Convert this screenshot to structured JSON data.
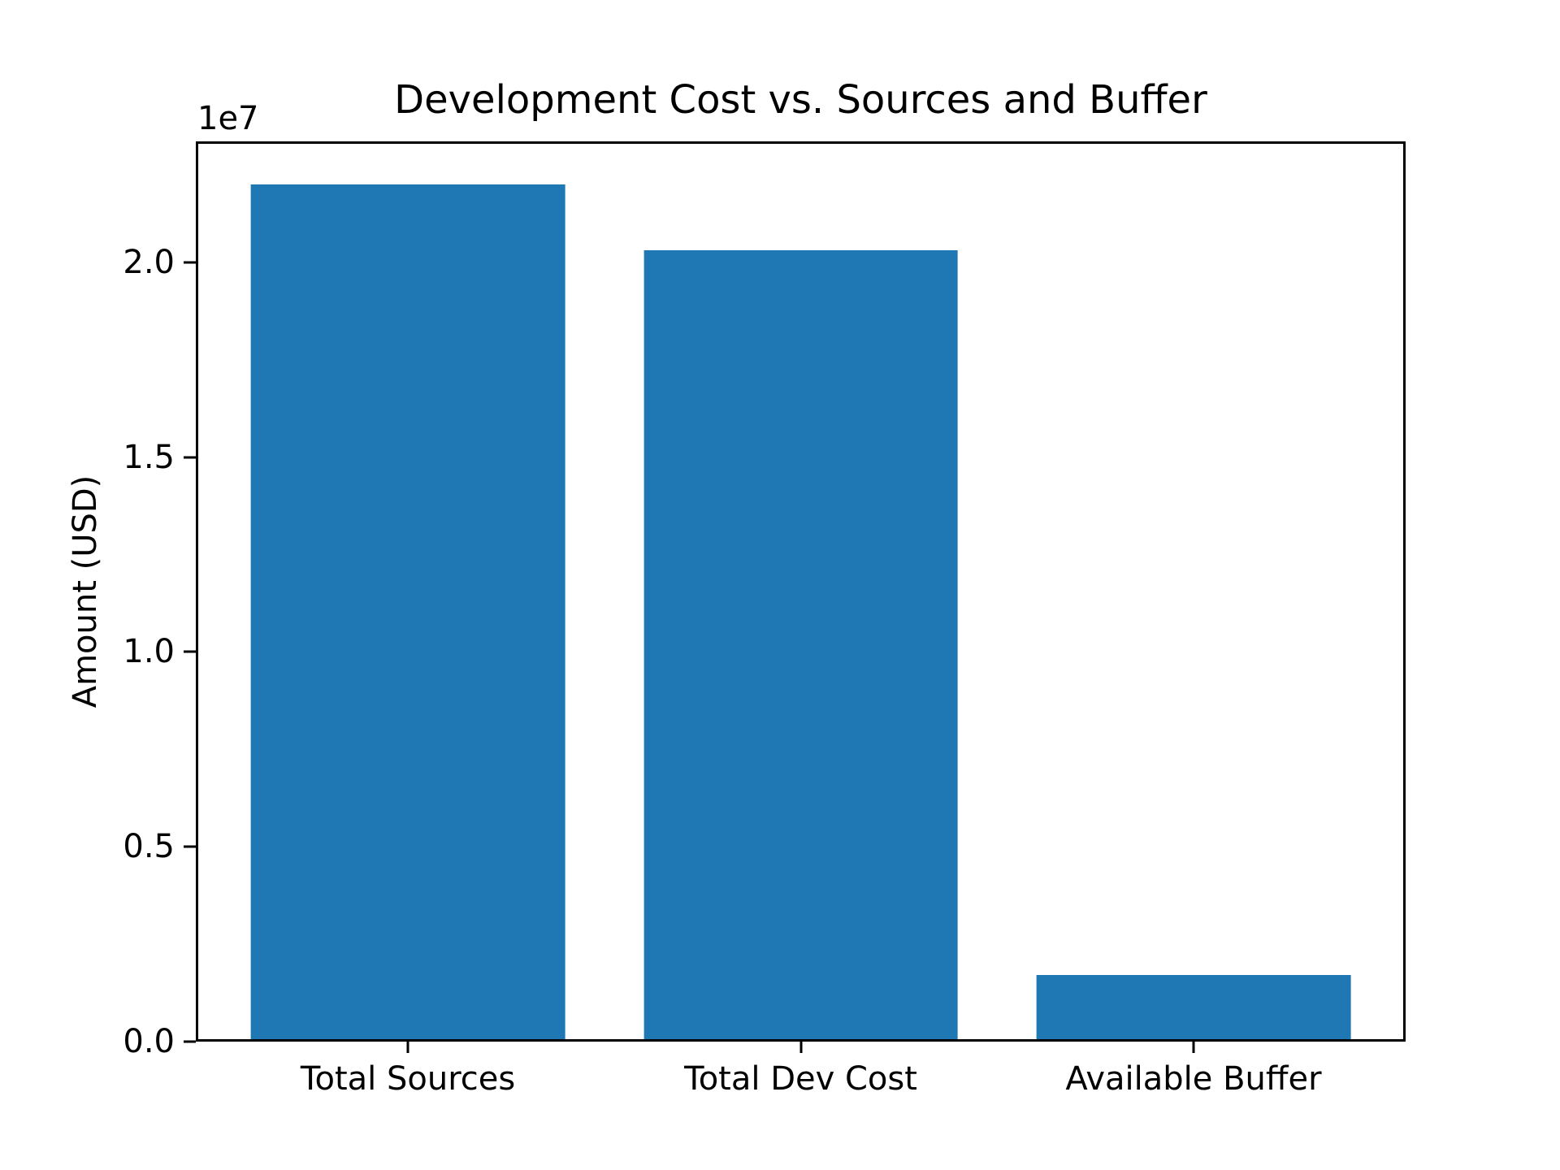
{
  "chart_data": {
    "type": "bar",
    "title": "Development Cost vs. Sources and Buffer",
    "xlabel": "",
    "ylabel": "Amount (USD)",
    "y_offset_text": "1e7",
    "categories": [
      "Total Sources",
      "Total Dev Cost",
      "Available Buffer"
    ],
    "values": [
      22000000,
      20300000,
      1700000
    ],
    "ylim": [
      0,
      23100000
    ],
    "ytick_values": [
      0,
      5000000,
      10000000,
      15000000,
      20000000
    ],
    "ytick_labels": [
      "0.0",
      "0.5",
      "1.0",
      "1.5",
      "2.0"
    ],
    "bar_color": "#1f77b4",
    "background_color": "#ffffff",
    "text_color": "#000000",
    "grid": false,
    "legend": "none"
  }
}
